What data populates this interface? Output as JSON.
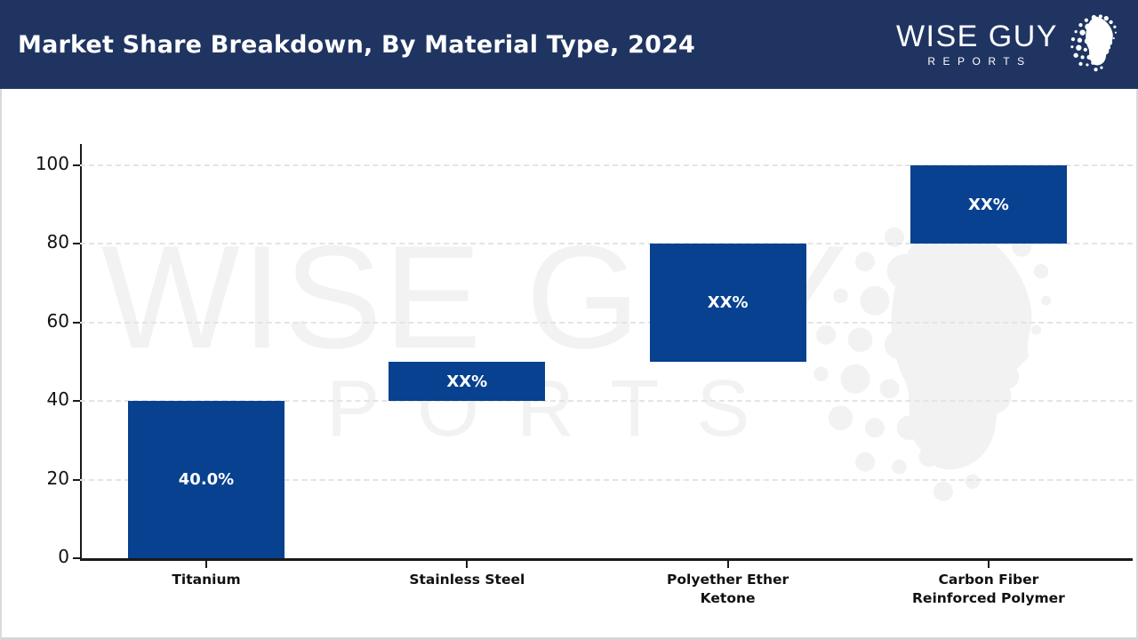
{
  "header": {
    "title": "Market Share Breakdown, By Material Type, 2024",
    "logo": {
      "name": "WISE GUY",
      "subtitle": "REPORTS"
    }
  },
  "watermark": {
    "line1": "WISE GUY",
    "line2": "PORTS"
  },
  "chart_data": {
    "type": "bar",
    "subtype": "waterfall",
    "title": "Market Share Breakdown, By Material Type, 2024",
    "categories": [
      "Titanium",
      "Stainless Steel",
      "Polyether Ether Ketone",
      "Carbon Fiber Reinforced Polymer"
    ],
    "series": [
      {
        "name": "Market Share (%)",
        "segments": [
          {
            "category": "Titanium",
            "start": 0,
            "end": 40,
            "label": "40.0%"
          },
          {
            "category": "Stainless Steel",
            "start": 40,
            "end": 50,
            "label": "XX%"
          },
          {
            "category": "Polyether Ether Ketone",
            "start": 50,
            "end": 80,
            "label": "XX%"
          },
          {
            "category": "Carbon Fiber Reinforced Polymer",
            "start": 80,
            "end": 100,
            "label": "XX%"
          }
        ]
      }
    ],
    "ylim": [
      0,
      100
    ],
    "yticks": [
      0,
      20,
      40,
      60,
      80,
      100
    ],
    "grid": {
      "horizontal": true,
      "style": "dashed"
    },
    "legend": "none",
    "bar_color": "#07418f",
    "bar_label_color": "#ffffff"
  },
  "colors": {
    "header_bg": "#1f3461",
    "bar": "#07418f",
    "axis": "#1a1a1a",
    "gridline": "#e4e4e4",
    "watermark": "#f2f2f2",
    "page_border": "#d9d9d9"
  }
}
